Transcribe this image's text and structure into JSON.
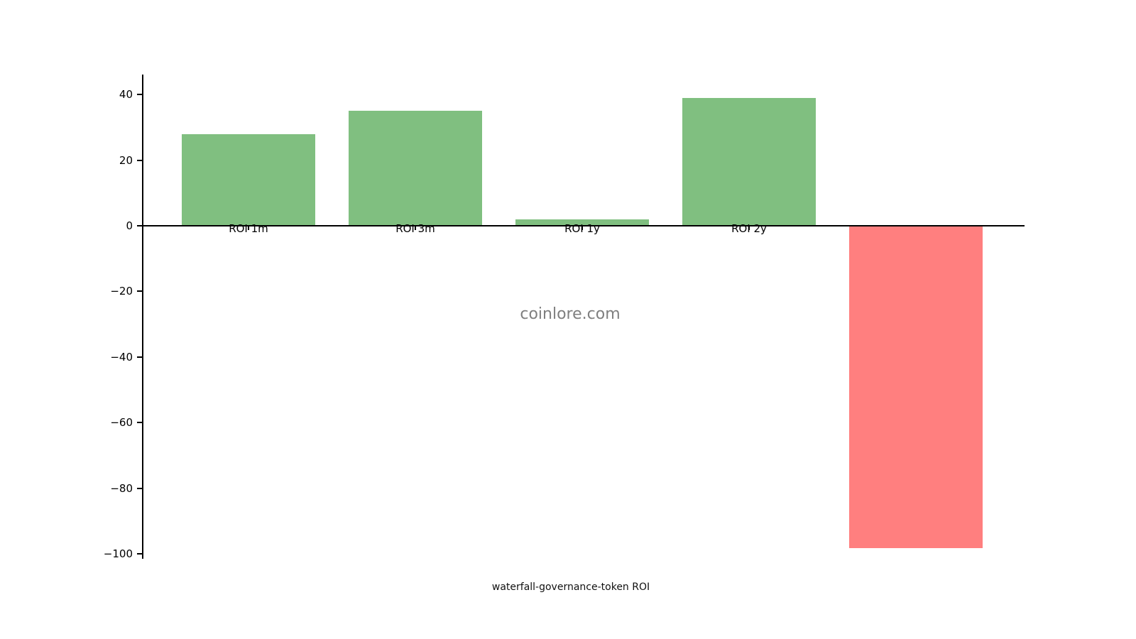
{
  "page": {
    "background": "#ffffff"
  },
  "chart_data": {
    "type": "bar",
    "categories": [
      "ROI 1m",
      "ROI 3m",
      "ROI 1y",
      "ROI 2y",
      ""
    ],
    "values": [
      28,
      35,
      2,
      39,
      -98
    ],
    "bar_colors": [
      "#80bf80",
      "#80bf80",
      "#80bf80",
      "#80bf80",
      "#ff7f7f"
    ],
    "positive_color": "#80bf80",
    "negative_color": "#ff7f7f",
    "y_ticks": [
      40,
      20,
      0,
      -20,
      -40,
      -60,
      -80,
      -100
    ],
    "y_tick_labels": [
      "40",
      "20",
      "0",
      "−20",
      "−40",
      "−60",
      "−80",
      "−100"
    ],
    "ylim": [
      -101.5,
      46.5
    ],
    "grid": false,
    "legend": null,
    "xlabel": "",
    "ylabel": "",
    "title": "waterfall-governance-token ROI",
    "watermark": "coinlore.com",
    "axis_color": "#000000",
    "tick_label_color": "#000000",
    "watermark_color": "#7f7f7f"
  }
}
